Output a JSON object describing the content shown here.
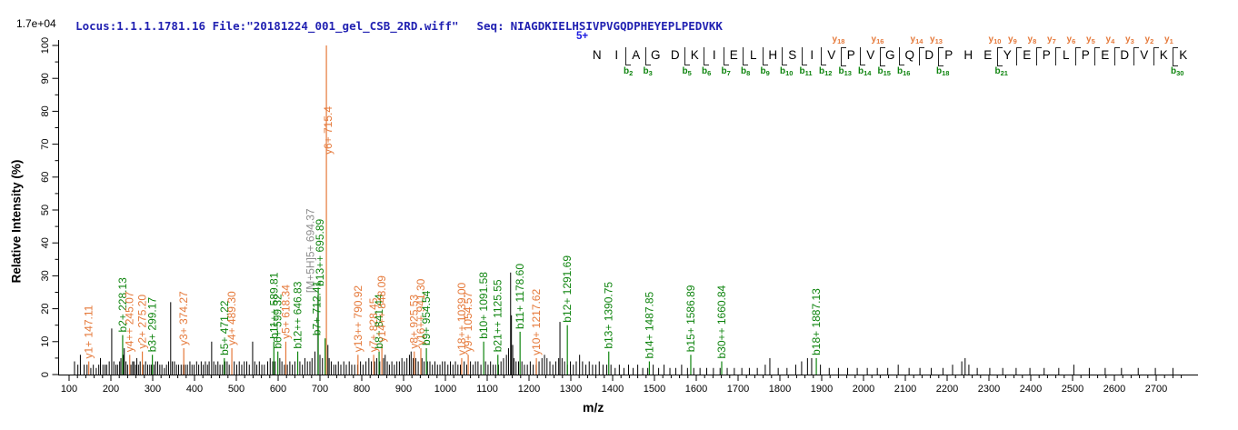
{
  "header": {
    "locus_file": "Locus:1.1.1.1781.16 File:\"20181224_001_gel_CSB_2RD.wiff\"",
    "seq_label": "Seq:",
    "sequence": "NIAGDKIELHSIVPVGQDPHEYEPLPEDVKK",
    "intensity_scale": "1.7e+04"
  },
  "axes": {
    "xlabel": "m/z",
    "ylabel": "Relative  Intensity (%)"
  },
  "precursor": {
    "charge_label": "5+"
  },
  "colors": {
    "y_ion": "#E5793A",
    "b_ion": "#0E840E",
    "precursor_peak": "#8D8D8D",
    "noise_peak": "#000000",
    "header_text": "#2222B2",
    "charge_text": "#1A1AE0"
  },
  "ladder": {
    "residues": [
      {
        "aa": "N"
      },
      {
        "aa": "I"
      },
      {
        "aa": "A",
        "b": "2"
      },
      {
        "aa": "G",
        "b": "3"
      },
      {
        "aa": "D"
      },
      {
        "aa": "K",
        "b": "5"
      },
      {
        "aa": "I",
        "b": "6"
      },
      {
        "aa": "E",
        "b": "7"
      },
      {
        "aa": "L",
        "b": "8"
      },
      {
        "aa": "H",
        "b": "9"
      },
      {
        "aa": "S",
        "b": "10"
      },
      {
        "aa": "I",
        "b": "11"
      },
      {
        "aa": "V",
        "b": "12"
      },
      {
        "aa": "P",
        "b": "13",
        "y": "18"
      },
      {
        "aa": "V",
        "b": "14"
      },
      {
        "aa": "G",
        "b": "15",
        "y": "16"
      },
      {
        "aa": "Q",
        "b": "16"
      },
      {
        "aa": "D",
        "y": "14"
      },
      {
        "aa": "P",
        "b": "18",
        "y": "13"
      },
      {
        "aa": "H"
      },
      {
        "aa": "E"
      },
      {
        "aa": "Y",
        "b": "21",
        "y": "10"
      },
      {
        "aa": "E",
        "y": "9"
      },
      {
        "aa": "P",
        "y": "8"
      },
      {
        "aa": "L",
        "y": "7"
      },
      {
        "aa": "P",
        "y": "6"
      },
      {
        "aa": "E",
        "y": "5"
      },
      {
        "aa": "D",
        "y": "4"
      },
      {
        "aa": "V",
        "y": "3"
      },
      {
        "aa": "K",
        "y": "2"
      },
      {
        "aa": "K",
        "b": "30",
        "y": "1"
      }
    ]
  },
  "chart_data": {
    "type": "bar",
    "title": "MS/MS fragment spectrum",
    "xlabel": "m/z",
    "ylabel": "Relative Intensity (%)",
    "xlim": [
      60,
      2800
    ],
    "ylim": [
      0,
      100
    ],
    "x_axis": {
      "min": 100,
      "max": 2700,
      "tick_step": 100,
      "minor_step": 20,
      "minor_end": 2760
    },
    "y_axis": {
      "min": 0,
      "max": 100,
      "tick_step": 10,
      "minor_step": 5
    },
    "annotated_peaks": [
      {
        "label": "y1+ 147.11",
        "ion": "y1+",
        "mz": 147.11,
        "intensity_pct": 4,
        "series": "y"
      },
      {
        "label": "b2+ 228.13",
        "ion": "b2+",
        "mz": 228.13,
        "intensity_pct": 12,
        "series": "b"
      },
      {
        "label": "y4++ 245.07",
        "ion": "y4++",
        "mz": 245.07,
        "intensity_pct": 6,
        "series": "y"
      },
      {
        "label": "y2+ 275.20",
        "ion": "y2+",
        "mz": 275.2,
        "intensity_pct": 7,
        "series": "y"
      },
      {
        "label": "b3+ 299.17",
        "ion": "b3+",
        "mz": 299.17,
        "intensity_pct": 6,
        "series": "b"
      },
      {
        "label": "y3+ 374.27",
        "ion": "y3+",
        "mz": 374.27,
        "intensity_pct": 8,
        "series": "y"
      },
      {
        "label": "b5+ 471.22",
        "ion": "b5+",
        "mz": 471.22,
        "intensity_pct": 5,
        "series": "b"
      },
      {
        "label": "y4+ 489.30",
        "ion": "y4+",
        "mz": 489.3,
        "intensity_pct": 8,
        "series": "y"
      },
      {
        "label": "b11++ 589.81",
        "ion": "b11++",
        "mz": 589.81,
        "intensity_pct": 10,
        "series": "b"
      },
      {
        "label": "b6+ 599.32",
        "ion": "b6+",
        "mz": 599.32,
        "intensity_pct": 7,
        "series": "b"
      },
      {
        "label": "y5+ 618.34",
        "ion": "y5+",
        "mz": 618.34,
        "intensity_pct": 10,
        "series": "y"
      },
      {
        "label": "b12++ 646.83",
        "ion": "b12++",
        "mz": 646.83,
        "intensity_pct": 7,
        "series": "b"
      },
      {
        "label": "[M+5H]5+ 694.37",
        "ion": "[M+5H]5+",
        "mz": 694.37,
        "intensity_pct": 24,
        "series": "precursor",
        "dx": -4
      },
      {
        "label": "b13++ 695.89",
        "ion": "b13++",
        "mz": 695.89,
        "intensity_pct": 26,
        "series": "b",
        "dx": 6
      },
      {
        "label": "b7+ 712.41",
        "ion": "b7+",
        "mz": 712.41,
        "intensity_pct": 11,
        "series": "b",
        "dx": -5
      },
      {
        "label": "y6+ 715.4",
        "ion": "y6+",
        "mz": 715.4,
        "intensity_pct": 100,
        "series": "y",
        "dx": 6
      },
      {
        "label": "y13++ 790.92",
        "ion": "y13++",
        "mz": 790.92,
        "intensity_pct": 6,
        "series": "y"
      },
      {
        "label": "y7+ 828.45",
        "ion": "y7+",
        "mz": 828.45,
        "intensity_pct": 6,
        "series": "y"
      },
      {
        "label": "b8+ 841.44",
        "ion": "b8+",
        "mz": 841.44,
        "intensity_pct": 7,
        "series": "b"
      },
      {
        "label": "y14++ 848.09",
        "ion": "y14++",
        "mz": 848.09,
        "intensity_pct": 9,
        "series": "y"
      },
      {
        "label": "y8+ 925.53",
        "ion": "y8+",
        "mz": 925.53,
        "intensity_pct": 7,
        "series": "y"
      },
      {
        "label": "y16++ 941.30",
        "ion": "y16++",
        "mz": 941.3,
        "intensity_pct": 8,
        "series": "y"
      },
      {
        "label": "b9+ 954.54",
        "ion": "b9+",
        "mz": 954.54,
        "intensity_pct": 8,
        "series": "b"
      },
      {
        "label": "y18++ 1039.00",
        "ion": "y18++",
        "mz": 1039.0,
        "intensity_pct": 5,
        "series": "y"
      },
      {
        "label": "y9+ 1054.57",
        "ion": "y9+",
        "mz": 1054.57,
        "intensity_pct": 6,
        "series": "y"
      },
      {
        "label": "b10+ 1091.58",
        "ion": "b10+",
        "mz": 1091.58,
        "intensity_pct": 10,
        "series": "b"
      },
      {
        "label": "b21++ 1125.55",
        "ion": "b21++",
        "mz": 1125.55,
        "intensity_pct": 6,
        "series": "b"
      },
      {
        "label": "b11+ 1178.60",
        "ion": "b11+",
        "mz": 1178.6,
        "intensity_pct": 13,
        "series": "b"
      },
      {
        "label": "y10+ 1217.62",
        "ion": "y10+",
        "mz": 1217.62,
        "intensity_pct": 5,
        "series": "y"
      },
      {
        "label": "b12+ 1291.69",
        "ion": "b12+",
        "mz": 1291.69,
        "intensity_pct": 15,
        "series": "b"
      },
      {
        "label": "b13+ 1390.75",
        "ion": "b13+",
        "mz": 1390.75,
        "intensity_pct": 7,
        "series": "b"
      },
      {
        "label": "b14+ 1487.85",
        "ion": "b14+",
        "mz": 1487.85,
        "intensity_pct": 4,
        "series": "b"
      },
      {
        "label": "b15+ 1586.89",
        "ion": "b15+",
        "mz": 1586.89,
        "intensity_pct": 6,
        "series": "b"
      },
      {
        "label": "b30++ 1660.84",
        "ion": "b30++",
        "mz": 1660.84,
        "intensity_pct": 4,
        "series": "b"
      },
      {
        "label": "b18+ 1887.13",
        "ion": "b18+",
        "mz": 1887.13,
        "intensity_pct": 5,
        "series": "b"
      }
    ],
    "noise_peaks": [
      [
        113,
        4
      ],
      [
        121,
        3
      ],
      [
        127,
        6
      ],
      [
        136,
        3
      ],
      [
        143,
        3
      ],
      [
        152,
        2
      ],
      [
        158,
        3
      ],
      [
        165,
        2
      ],
      [
        171,
        3
      ],
      [
        175,
        5
      ],
      [
        181,
        3
      ],
      [
        186,
        3
      ],
      [
        190,
        3
      ],
      [
        196,
        4
      ],
      [
        202,
        14
      ],
      [
        207,
        4
      ],
      [
        212,
        3
      ],
      [
        216,
        3
      ],
      [
        221,
        4
      ],
      [
        224,
        5
      ],
      [
        230,
        6
      ],
      [
        232,
        8
      ],
      [
        236,
        4
      ],
      [
        240,
        3
      ],
      [
        248,
        3
      ],
      [
        252,
        4
      ],
      [
        255,
        4
      ],
      [
        259,
        3
      ],
      [
        262,
        5
      ],
      [
        266,
        3
      ],
      [
        270,
        4
      ],
      [
        278,
        3
      ],
      [
        283,
        4
      ],
      [
        288,
        3
      ],
      [
        293,
        3
      ],
      [
        297,
        3
      ],
      [
        303,
        3
      ],
      [
        307,
        4
      ],
      [
        312,
        4
      ],
      [
        317,
        3
      ],
      [
        322,
        3
      ],
      [
        328,
        2
      ],
      [
        333,
        3
      ],
      [
        338,
        4
      ],
      [
        343,
        22
      ],
      [
        347,
        4
      ],
      [
        352,
        4
      ],
      [
        357,
        3
      ],
      [
        362,
        3
      ],
      [
        368,
        3
      ],
      [
        373,
        3
      ],
      [
        378,
        3
      ],
      [
        383,
        3
      ],
      [
        389,
        4
      ],
      [
        394,
        3
      ],
      [
        399,
        3
      ],
      [
        405,
        4
      ],
      [
        410,
        3
      ],
      [
        416,
        4
      ],
      [
        421,
        3
      ],
      [
        426,
        4
      ],
      [
        431,
        3
      ],
      [
        435,
        4
      ],
      [
        441,
        10
      ],
      [
        446,
        4
      ],
      [
        451,
        3
      ],
      [
        456,
        4
      ],
      [
        461,
        3
      ],
      [
        467,
        3
      ],
      [
        473,
        4
      ],
      [
        478,
        4
      ],
      [
        483,
        3
      ],
      [
        489,
        3
      ],
      [
        495,
        4
      ],
      [
        501,
        3
      ],
      [
        507,
        4
      ],
      [
        513,
        3
      ],
      [
        519,
        4
      ],
      [
        525,
        4
      ],
      [
        531,
        3
      ],
      [
        539,
        10
      ],
      [
        544,
        4
      ],
      [
        549,
        3
      ],
      [
        555,
        4
      ],
      [
        561,
        3
      ],
      [
        567,
        3
      ],
      [
        575,
        4
      ],
      [
        581,
        5
      ],
      [
        587,
        4
      ],
      [
        593,
        4
      ],
      [
        604,
        5
      ],
      [
        609,
        4
      ],
      [
        615,
        3
      ],
      [
        622,
        3
      ],
      [
        628,
        4
      ],
      [
        634,
        3
      ],
      [
        640,
        4
      ],
      [
        652,
        4
      ],
      [
        658,
        3
      ],
      [
        664,
        5
      ],
      [
        670,
        4
      ],
      [
        676,
        4
      ],
      [
        681,
        5
      ],
      [
        688,
        7
      ],
      [
        700,
        6
      ],
      [
        706,
        5
      ],
      [
        719,
        9
      ],
      [
        722,
        5
      ],
      [
        727,
        4
      ],
      [
        733,
        3
      ],
      [
        738,
        3
      ],
      [
        744,
        4
      ],
      [
        750,
        3
      ],
      [
        757,
        4
      ],
      [
        763,
        3
      ],
      [
        770,
        4
      ],
      [
        776,
        3
      ],
      [
        783,
        3
      ],
      [
        790,
        3
      ],
      [
        797,
        4
      ],
      [
        803,
        3
      ],
      [
        810,
        4
      ],
      [
        817,
        5
      ],
      [
        823,
        4
      ],
      [
        831,
        4
      ],
      [
        836,
        5
      ],
      [
        843,
        4
      ],
      [
        852,
        5
      ],
      [
        856,
        6
      ],
      [
        861,
        4
      ],
      [
        866,
        3
      ],
      [
        872,
        4
      ],
      [
        878,
        3
      ],
      [
        884,
        4
      ],
      [
        890,
        4
      ],
      [
        896,
        5
      ],
      [
        902,
        4
      ],
      [
        908,
        5
      ],
      [
        914,
        6
      ],
      [
        918,
        7
      ],
      [
        923,
        5
      ],
      [
        929,
        5
      ],
      [
        935,
        4
      ],
      [
        944,
        5
      ],
      [
        949,
        4
      ],
      [
        957,
        4
      ],
      [
        963,
        4
      ],
      [
        969,
        3
      ],
      [
        975,
        4
      ],
      [
        981,
        3
      ],
      [
        987,
        3
      ],
      [
        993,
        4
      ],
      [
        999,
        4
      ],
      [
        1006,
        3
      ],
      [
        1012,
        4
      ],
      [
        1018,
        3
      ],
      [
        1024,
        4
      ],
      [
        1030,
        3
      ],
      [
        1036,
        3
      ],
      [
        1045,
        4
      ],
      [
        1051,
        3
      ],
      [
        1060,
        4
      ],
      [
        1066,
        3
      ],
      [
        1072,
        4
      ],
      [
        1078,
        4
      ],
      [
        1085,
        3
      ],
      [
        1096,
        4
      ],
      [
        1102,
        3
      ],
      [
        1108,
        4
      ],
      [
        1114,
        3
      ],
      [
        1120,
        3
      ],
      [
        1127,
        3
      ],
      [
        1133,
        4
      ],
      [
        1139,
        5
      ],
      [
        1146,
        6
      ],
      [
        1151,
        8
      ],
      [
        1156,
        31
      ],
      [
        1158,
        18
      ],
      [
        1161,
        9
      ],
      [
        1164,
        5
      ],
      [
        1169,
        4
      ],
      [
        1175,
        4
      ],
      [
        1183,
        4
      ],
      [
        1189,
        3
      ],
      [
        1196,
        3
      ],
      [
        1203,
        4
      ],
      [
        1210,
        3
      ],
      [
        1217,
        3
      ],
      [
        1224,
        4
      ],
      [
        1231,
        5
      ],
      [
        1237,
        6
      ],
      [
        1243,
        5
      ],
      [
        1250,
        4
      ],
      [
        1257,
        3
      ],
      [
        1264,
        4
      ],
      [
        1271,
        5
      ],
      [
        1274,
        16
      ],
      [
        1279,
        5
      ],
      [
        1285,
        4
      ],
      [
        1292,
        3
      ],
      [
        1299,
        4
      ],
      [
        1306,
        3
      ],
      [
        1313,
        4
      ],
      [
        1321,
        6
      ],
      [
        1328,
        4
      ],
      [
        1336,
        3
      ],
      [
        1344,
        4
      ],
      [
        1352,
        3
      ],
      [
        1360,
        3
      ],
      [
        1368,
        4
      ],
      [
        1377,
        3
      ],
      [
        1386,
        3
      ],
      [
        1396,
        3
      ],
      [
        1406,
        2
      ],
      [
        1416,
        3
      ],
      [
        1427,
        2
      ],
      [
        1438,
        3
      ],
      [
        1449,
        2
      ],
      [
        1460,
        3
      ],
      [
        1472,
        2
      ],
      [
        1484,
        2
      ],
      [
        1497,
        3
      ],
      [
        1510,
        2
      ],
      [
        1523,
        3
      ],
      [
        1537,
        2
      ],
      [
        1551,
        2
      ],
      [
        1565,
        3
      ],
      [
        1579,
        2
      ],
      [
        1594,
        2
      ],
      [
        1609,
        2
      ],
      [
        1625,
        2
      ],
      [
        1641,
        2
      ],
      [
        1657,
        2
      ],
      [
        1674,
        2
      ],
      [
        1691,
        2
      ],
      [
        1709,
        2
      ],
      [
        1727,
        2
      ],
      [
        1746,
        2
      ],
      [
        1765,
        3
      ],
      [
        1776,
        5
      ],
      [
        1796,
        2
      ],
      [
        1817,
        2
      ],
      [
        1838,
        3
      ],
      [
        1852,
        4
      ],
      [
        1866,
        5
      ],
      [
        1876,
        5
      ],
      [
        1897,
        3
      ],
      [
        1918,
        2
      ],
      [
        1940,
        2
      ],
      [
        1962,
        2
      ],
      [
        1985,
        2
      ],
      [
        2009,
        2
      ],
      [
        2033,
        2
      ],
      [
        2058,
        2
      ],
      [
        2083,
        3
      ],
      [
        2109,
        2
      ],
      [
        2135,
        2
      ],
      [
        2162,
        2
      ],
      [
        2190,
        2
      ],
      [
        2213,
        3
      ],
      [
        2235,
        4
      ],
      [
        2243,
        5
      ],
      [
        2252,
        3
      ],
      [
        2272,
        2
      ],
      [
        2302,
        2
      ],
      [
        2333,
        2
      ],
      [
        2365,
        2
      ],
      [
        2398,
        2
      ],
      [
        2432,
        2
      ],
      [
        2467,
        2
      ],
      [
        2503,
        3
      ],
      [
        2540,
        2
      ],
      [
        2578,
        2
      ],
      [
        2617,
        2
      ],
      [
        2657,
        2
      ],
      [
        2698,
        2
      ],
      [
        2740,
        2
      ]
    ]
  }
}
